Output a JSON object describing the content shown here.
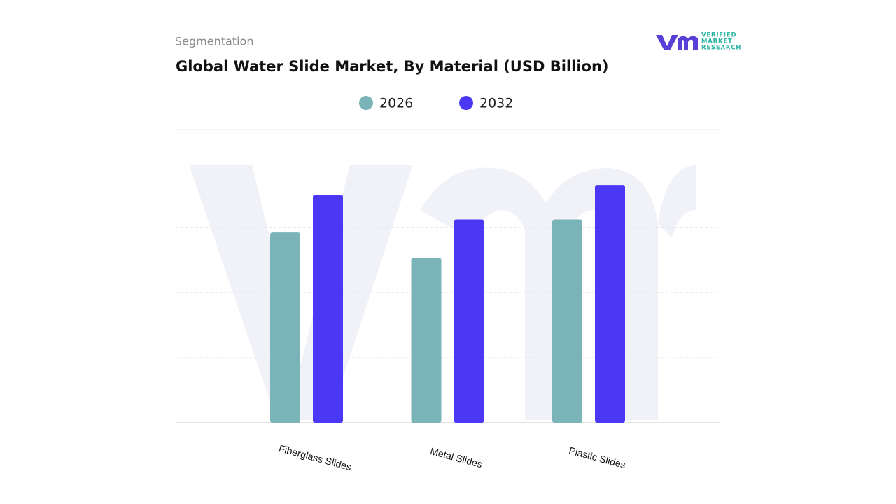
{
  "chart_data": {
    "type": "bar",
    "subtitle": "Segmentation",
    "title": "Global Water Slide Market, By Material (USD Billion)",
    "categories": [
      "Fiberglass Slides",
      "Metal Slides",
      "Plastic Slides"
    ],
    "series": [
      {
        "name": "2026",
        "color": "#7ab3b8",
        "values": [
          2.92,
          2.53,
          3.12
        ]
      },
      {
        "name": "2032",
        "color": "#4b38f5",
        "values": [
          3.5,
          3.12,
          3.65
        ]
      }
    ],
    "ylim": [
      0,
      4.5
    ],
    "yticks": [
      0,
      1,
      2,
      3,
      4
    ],
    "grid": true
  },
  "logo": {
    "lines": [
      "VERIFIED",
      "MARKET",
      "RESEARCH"
    ]
  }
}
